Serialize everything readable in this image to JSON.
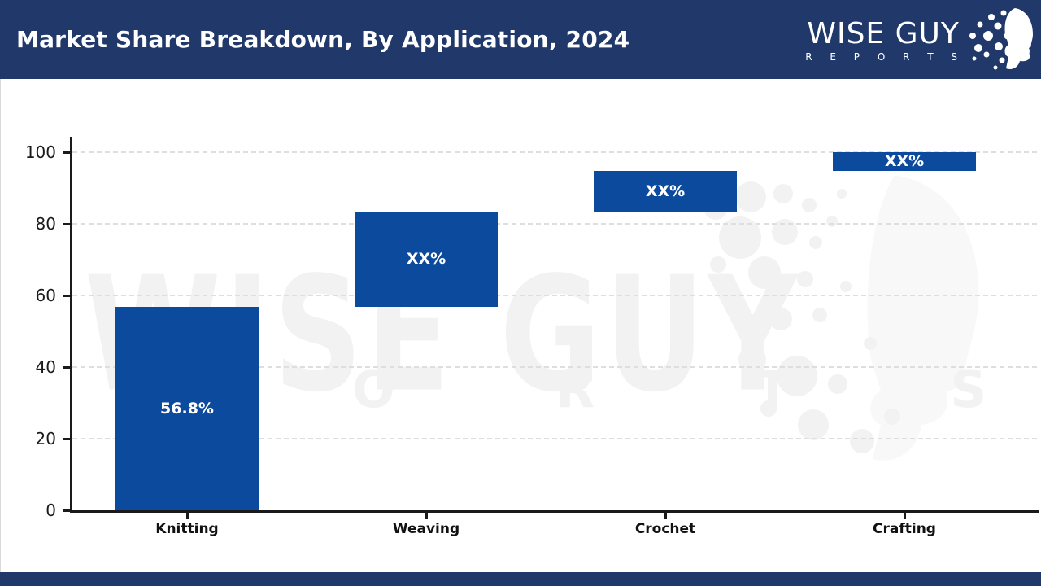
{
  "header": {
    "title": "Market Share Breakdown, By Application, 2024",
    "bg_color": "#20386A",
    "logo": {
      "name": "WISE GUY",
      "sub": "R E P O R T S",
      "icon": "dotted-head-profile"
    }
  },
  "watermark": {
    "line1": "WISE GUY",
    "line2": "P O R T S"
  },
  "chart_data": {
    "type": "bar",
    "subtype": "waterfall",
    "title": "Market Share Breakdown, By Application, 2024",
    "categories": [
      "Knitting",
      "Weaving",
      "Crochet",
      "Crafting"
    ],
    "bars": [
      {
        "category": "Knitting",
        "start": 0,
        "end": 56.8,
        "label": "56.8%"
      },
      {
        "category": "Weaving",
        "start": 56.8,
        "end": 83.3,
        "label": "XX%"
      },
      {
        "category": "Crochet",
        "start": 83.3,
        "end": 94.7,
        "label": "XX%"
      },
      {
        "category": "Crafting",
        "start": 94.7,
        "end": 100,
        "label": "XX%"
      }
    ],
    "xlabel": "",
    "ylabel": "",
    "ylim": [
      0,
      100
    ],
    "yticks": [
      0,
      20,
      40,
      60,
      80,
      100
    ],
    "grid": "horizontal-dashed",
    "legend": "none",
    "bar_color": "#0C4A9E",
    "bar_label_color": "#FFFFFF",
    "axis_color": "#1A1A1A"
  },
  "footer": {
    "bg_color": "#20386A"
  }
}
